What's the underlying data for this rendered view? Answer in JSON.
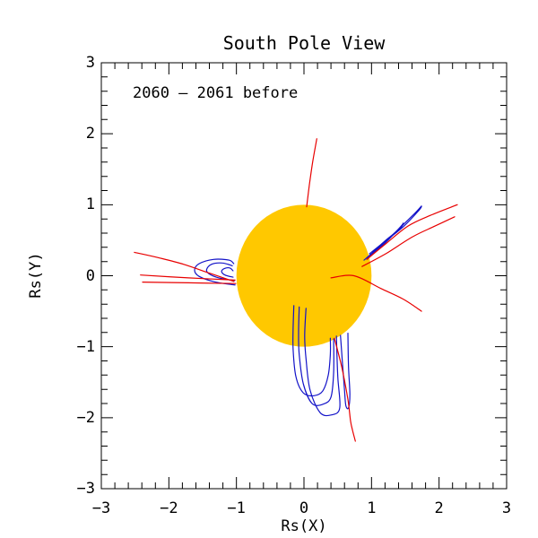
{
  "window": {
    "background": "#ffffff"
  },
  "colors": {
    "frame": "#000000",
    "text": "#000000",
    "sun": "#FFC800",
    "open_field": "#E80000",
    "closed_field": "#1212C8"
  },
  "chart_data": {
    "type": "line",
    "title": "South Pole View",
    "annotation": "2060 — 2061 before",
    "xlabel": "Rs(X)",
    "ylabel": "Rs(Y)",
    "xlim": [
      -3,
      3
    ],
    "ylim": [
      -3,
      3
    ],
    "x_tick_values": [
      -3,
      -2,
      -1,
      0,
      1,
      2,
      3
    ],
    "y_tick_values": [
      3,
      2,
      1,
      0,
      -1,
      -2,
      -3
    ],
    "x_tick_labels": [
      "−3",
      "−2",
      "−1",
      "0",
      "1",
      "2",
      "3"
    ],
    "y_tick_labels": [
      "3",
      "2",
      "1",
      "0",
      "−1",
      "−2",
      "−3"
    ],
    "minor_tick_step": 0.2,
    "grid": false,
    "legend": "none",
    "sun_disk": {
      "center_x": 0,
      "center_y": 0,
      "radius_rs": 1
    },
    "field_lines": [
      {
        "id": "north-polar-spike",
        "kind": "open",
        "points": [
          [
            0.04,
            0.97
          ],
          [
            0.08,
            1.28
          ],
          [
            0.13,
            1.61
          ],
          [
            0.19,
            1.93
          ]
        ]
      },
      {
        "id": "northeast-open-upper",
        "kind": "open",
        "points": [
          [
            0.93,
            0.23
          ],
          [
            1.21,
            0.45
          ],
          [
            1.54,
            0.7
          ],
          [
            1.87,
            0.85
          ],
          [
            2.27,
            1.0
          ]
        ]
      },
      {
        "id": "northeast-open-lower",
        "kind": "open",
        "points": [
          [
            0.86,
            0.13
          ],
          [
            1.21,
            0.31
          ],
          [
            1.61,
            0.55
          ],
          [
            1.94,
            0.7
          ],
          [
            2.23,
            0.83
          ]
        ]
      },
      {
        "id": "west-diagonal",
        "kind": "open",
        "points": [
          [
            -1.04,
            -0.08
          ],
          [
            -1.38,
            0.03
          ],
          [
            -1.78,
            0.16
          ],
          [
            -2.18,
            0.26
          ],
          [
            -2.51,
            0.33
          ]
        ]
      },
      {
        "id": "west-horizontal-upper",
        "kind": "open",
        "points": [
          [
            -1.02,
            -0.06
          ],
          [
            -1.71,
            -0.03
          ],
          [
            -2.42,
            0.01
          ]
        ]
      },
      {
        "id": "west-horizontal-lower",
        "kind": "open",
        "points": [
          [
            -1.01,
            -0.11
          ],
          [
            -1.71,
            -0.1
          ],
          [
            -2.39,
            -0.09
          ]
        ]
      },
      {
        "id": "east-equatorial",
        "kind": "open",
        "points": [
          [
            0.4,
            -0.03
          ],
          [
            0.74,
            0.0
          ],
          [
            1.14,
            -0.18
          ],
          [
            1.47,
            -0.33
          ],
          [
            1.74,
            -0.5
          ]
        ]
      },
      {
        "id": "south-spike",
        "kind": "open",
        "points": [
          [
            0.45,
            -0.88
          ],
          [
            0.56,
            -1.29
          ],
          [
            0.65,
            -1.74
          ],
          [
            0.69,
            -2.05
          ],
          [
            0.72,
            -2.18
          ],
          [
            0.76,
            -2.33
          ]
        ]
      },
      {
        "id": "northeast-loop-outer",
        "kind": "closed",
        "points": [
          [
            0.89,
            0.22
          ],
          [
            1.27,
            0.54
          ],
          [
            1.61,
            0.85
          ],
          [
            1.71,
            0.95
          ],
          [
            1.74,
            0.98
          ],
          [
            1.7,
            0.92
          ],
          [
            1.47,
            0.69
          ],
          [
            1.14,
            0.44
          ],
          [
            0.97,
            0.31
          ]
        ]
      },
      {
        "id": "northeast-loop-inner",
        "kind": "closed",
        "points": [
          [
            0.93,
            0.25
          ],
          [
            1.21,
            0.47
          ],
          [
            1.43,
            0.69
          ],
          [
            1.47,
            0.74
          ],
          [
            1.42,
            0.66
          ],
          [
            1.21,
            0.5
          ],
          [
            1.02,
            0.33
          ]
        ]
      },
      {
        "id": "west-loop-outer",
        "kind": "closed",
        "points": [
          [
            -1.02,
            -0.13
          ],
          [
            -1.31,
            -0.09
          ],
          [
            -1.55,
            -0.01
          ],
          [
            -1.62,
            0.08
          ],
          [
            -1.55,
            0.17
          ],
          [
            -1.34,
            0.23
          ],
          [
            -1.11,
            0.22
          ],
          [
            -1.04,
            0.17
          ]
        ]
      },
      {
        "id": "west-loop-middle",
        "kind": "closed",
        "points": [
          [
            -1.03,
            -0.07
          ],
          [
            -1.26,
            -0.03
          ],
          [
            -1.41,
            0.03
          ],
          [
            -1.44,
            0.09
          ],
          [
            -1.37,
            0.16
          ],
          [
            -1.21,
            0.18
          ],
          [
            -1.06,
            0.14
          ]
        ]
      },
      {
        "id": "west-loop-inner",
        "kind": "closed",
        "points": [
          [
            -1.05,
            -0.02
          ],
          [
            -1.17,
            0.01
          ],
          [
            -1.22,
            0.06
          ],
          [
            -1.18,
            0.1
          ],
          [
            -1.1,
            0.11
          ],
          [
            -1.05,
            0.07
          ]
        ]
      },
      {
        "id": "south-loop-1",
        "kind": "closed",
        "points": [
          [
            -0.15,
            -0.42
          ],
          [
            -0.16,
            -0.73
          ],
          [
            -0.16,
            -1.04
          ],
          [
            -0.12,
            -1.42
          ],
          [
            -0.01,
            -1.65
          ],
          [
            0.15,
            -1.69
          ],
          [
            0.28,
            -1.62
          ],
          [
            0.36,
            -1.4
          ],
          [
            0.39,
            -1.11
          ],
          [
            0.39,
            -0.88
          ]
        ]
      },
      {
        "id": "south-loop-2",
        "kind": "closed",
        "points": [
          [
            -0.07,
            -0.44
          ],
          [
            -0.08,
            -0.79
          ],
          [
            -0.07,
            -1.11
          ],
          [
            -0.01,
            -1.52
          ],
          [
            0.12,
            -1.8
          ],
          [
            0.28,
            -1.81
          ],
          [
            0.4,
            -1.71
          ],
          [
            0.44,
            -1.36
          ],
          [
            0.44,
            -0.89
          ]
        ]
      },
      {
        "id": "south-loop-3",
        "kind": "closed",
        "points": [
          [
            0.03,
            -0.46
          ],
          [
            0.01,
            -0.85
          ],
          [
            0.03,
            -1.17
          ],
          [
            0.09,
            -1.61
          ],
          [
            0.24,
            -1.93
          ],
          [
            0.41,
            -1.96
          ],
          [
            0.53,
            -1.86
          ],
          [
            0.5,
            -1.42
          ],
          [
            0.48,
            -0.85
          ]
        ]
      },
      {
        "id": "south-loop-4",
        "kind": "closed",
        "points": [
          [
            0.54,
            -0.84
          ],
          [
            0.57,
            -1.23
          ],
          [
            0.6,
            -1.61
          ],
          [
            0.62,
            -1.83
          ],
          [
            0.66,
            -1.86
          ],
          [
            0.68,
            -1.67
          ],
          [
            0.66,
            -1.29
          ],
          [
            0.65,
            -0.81
          ]
        ]
      }
    ]
  }
}
